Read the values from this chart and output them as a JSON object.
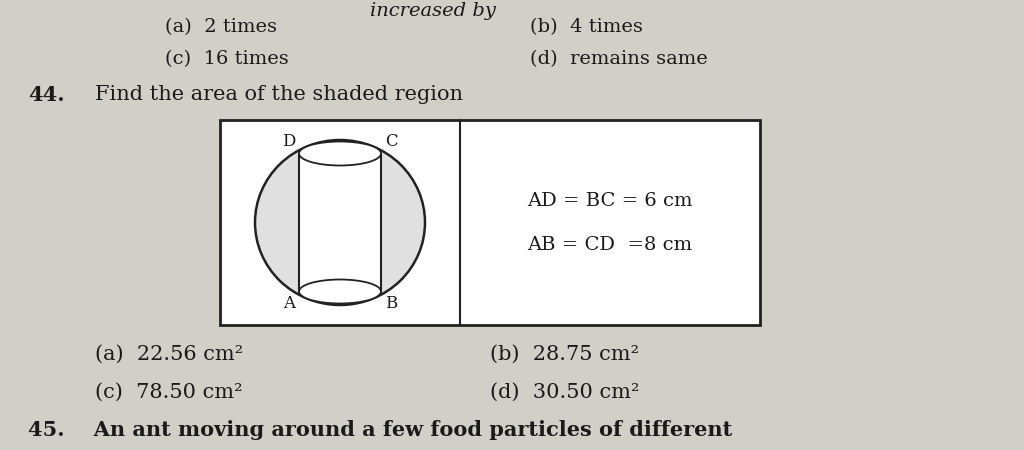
{
  "bg_color": "#d0cfc8",
  "text_color": "#1a1a1a",
  "fs": 14,
  "fs_small": 12,
  "line_a": "(a)  2 times",
  "line_b": "(b)  4 times",
  "line_c": "(c)  16 times",
  "line_d": "(d)  remains same",
  "q_num": "44.",
  "q_text": "Find the area of the shaded region",
  "dim1": "AD = BC = 6 cm",
  "dim2": "AB = CD  =8 cm",
  "ans_a": "(a)  22.56 cm²",
  "ans_b": "(b)  28.75 cm²",
  "ans_c": "(c)  78.50 cm²",
  "ans_d": "(d)  30.50 cm²",
  "footer": "45.    An ant moving around a few food particles of different"
}
